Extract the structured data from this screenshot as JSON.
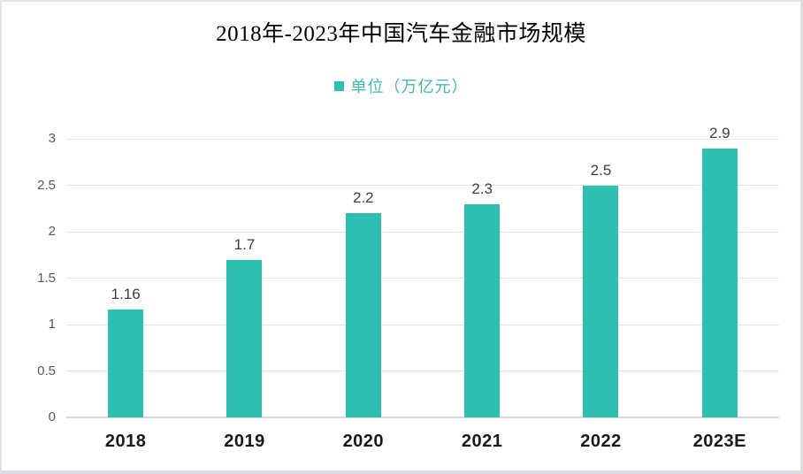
{
  "chart_data": {
    "type": "bar",
    "title": "2018年-2023年中国汽车金融市场规模",
    "legend": {
      "label": "单位（万亿元）",
      "position": "top-center"
    },
    "categories": [
      "2018",
      "2019",
      "2020",
      "2021",
      "2022",
      "2023E"
    ],
    "values": [
      1.16,
      1.7,
      2.2,
      2.3,
      2.5,
      2.9
    ],
    "value_labels": [
      "1.16",
      "1.7",
      "2.2",
      "2.3",
      "2.5",
      "2.9"
    ],
    "ylabel": "",
    "xlabel": "",
    "ylim": [
      0,
      3
    ],
    "yticks": [
      0,
      0.5,
      1,
      1.5,
      2,
      2.5,
      3
    ],
    "ytick_labels": [
      "0",
      "0.5",
      "1",
      "1.5",
      "2",
      "2.5",
      "3"
    ],
    "grid": true,
    "colors": {
      "bar": "#2FBFB1",
      "legend_text": "#3FBDB2",
      "gridline": "#E4E4E4",
      "axis_line": "#D9D9D9",
      "ytick_text": "#595959",
      "xtick_text": "#1A1A1A",
      "data_label_text": "#3F3F3F",
      "title_text": "#000000"
    }
  }
}
